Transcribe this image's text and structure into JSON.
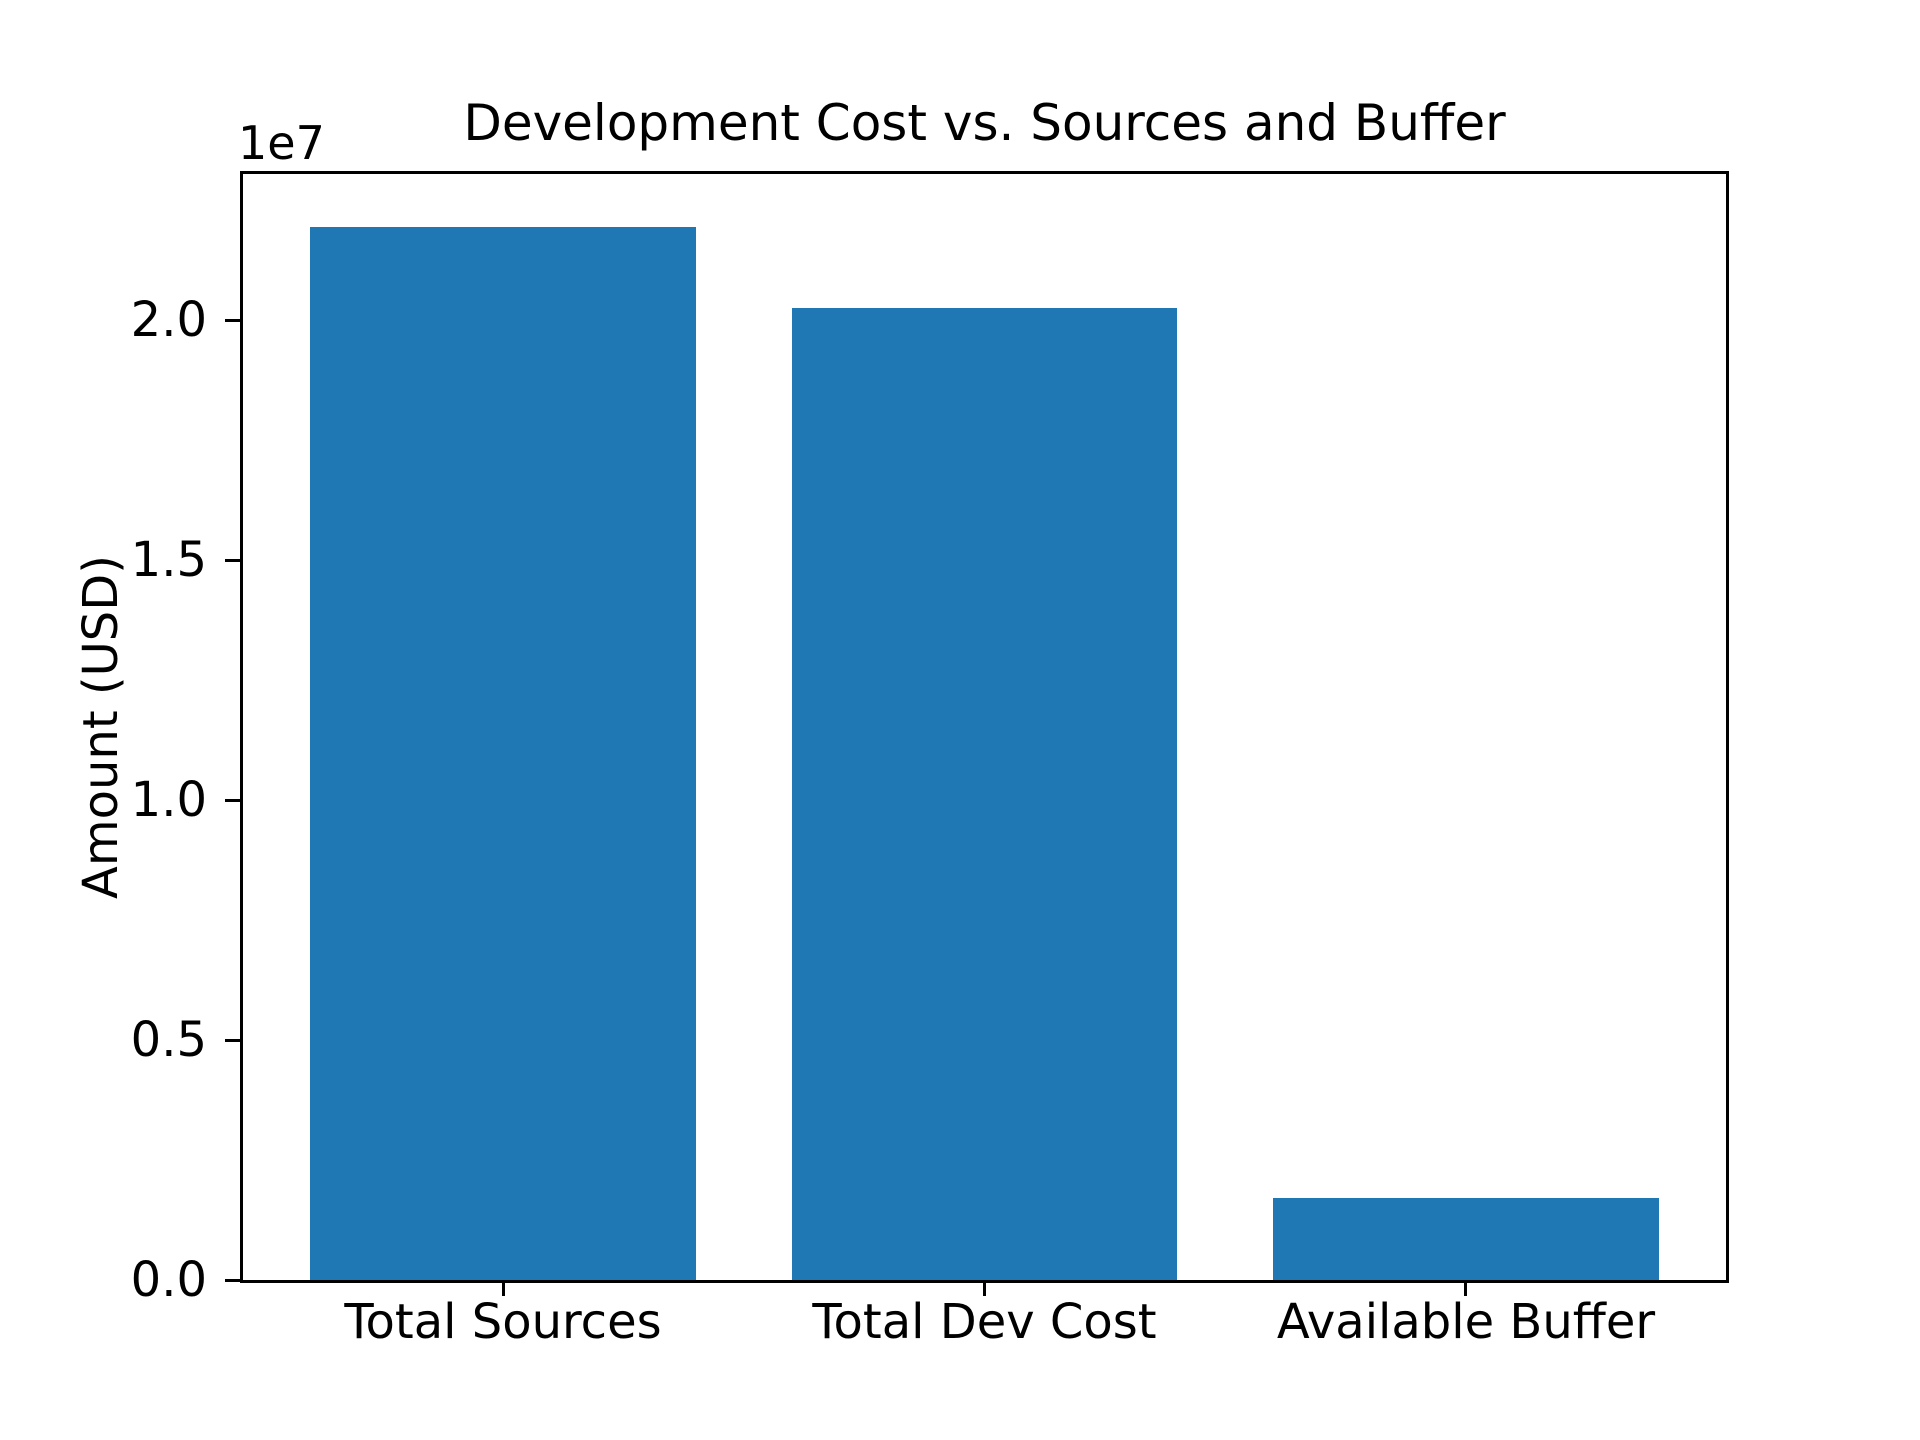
{
  "chart_data": {
    "type": "bar",
    "title": "Development Cost vs. Sources and Buffer",
    "xlabel": "",
    "ylabel": "Amount (USD)",
    "offset_text": "1e7",
    "categories": [
      "Total Sources",
      "Total Dev Cost",
      "Available Buffer"
    ],
    "values": [
      21950000,
      20250000,
      1700000
    ],
    "bar_color": "#1f77b4",
    "ylim": [
      0,
      23047500
    ],
    "yticks": [
      0,
      5000000,
      10000000,
      15000000,
      20000000
    ],
    "ytick_labels": [
      "0.0",
      "0.5",
      "1.0",
      "1.5",
      "2.0"
    ],
    "grid": false,
    "legend": null,
    "bar_width_fraction": 0.8,
    "xlim": [
      -0.54,
      2.54
    ]
  }
}
